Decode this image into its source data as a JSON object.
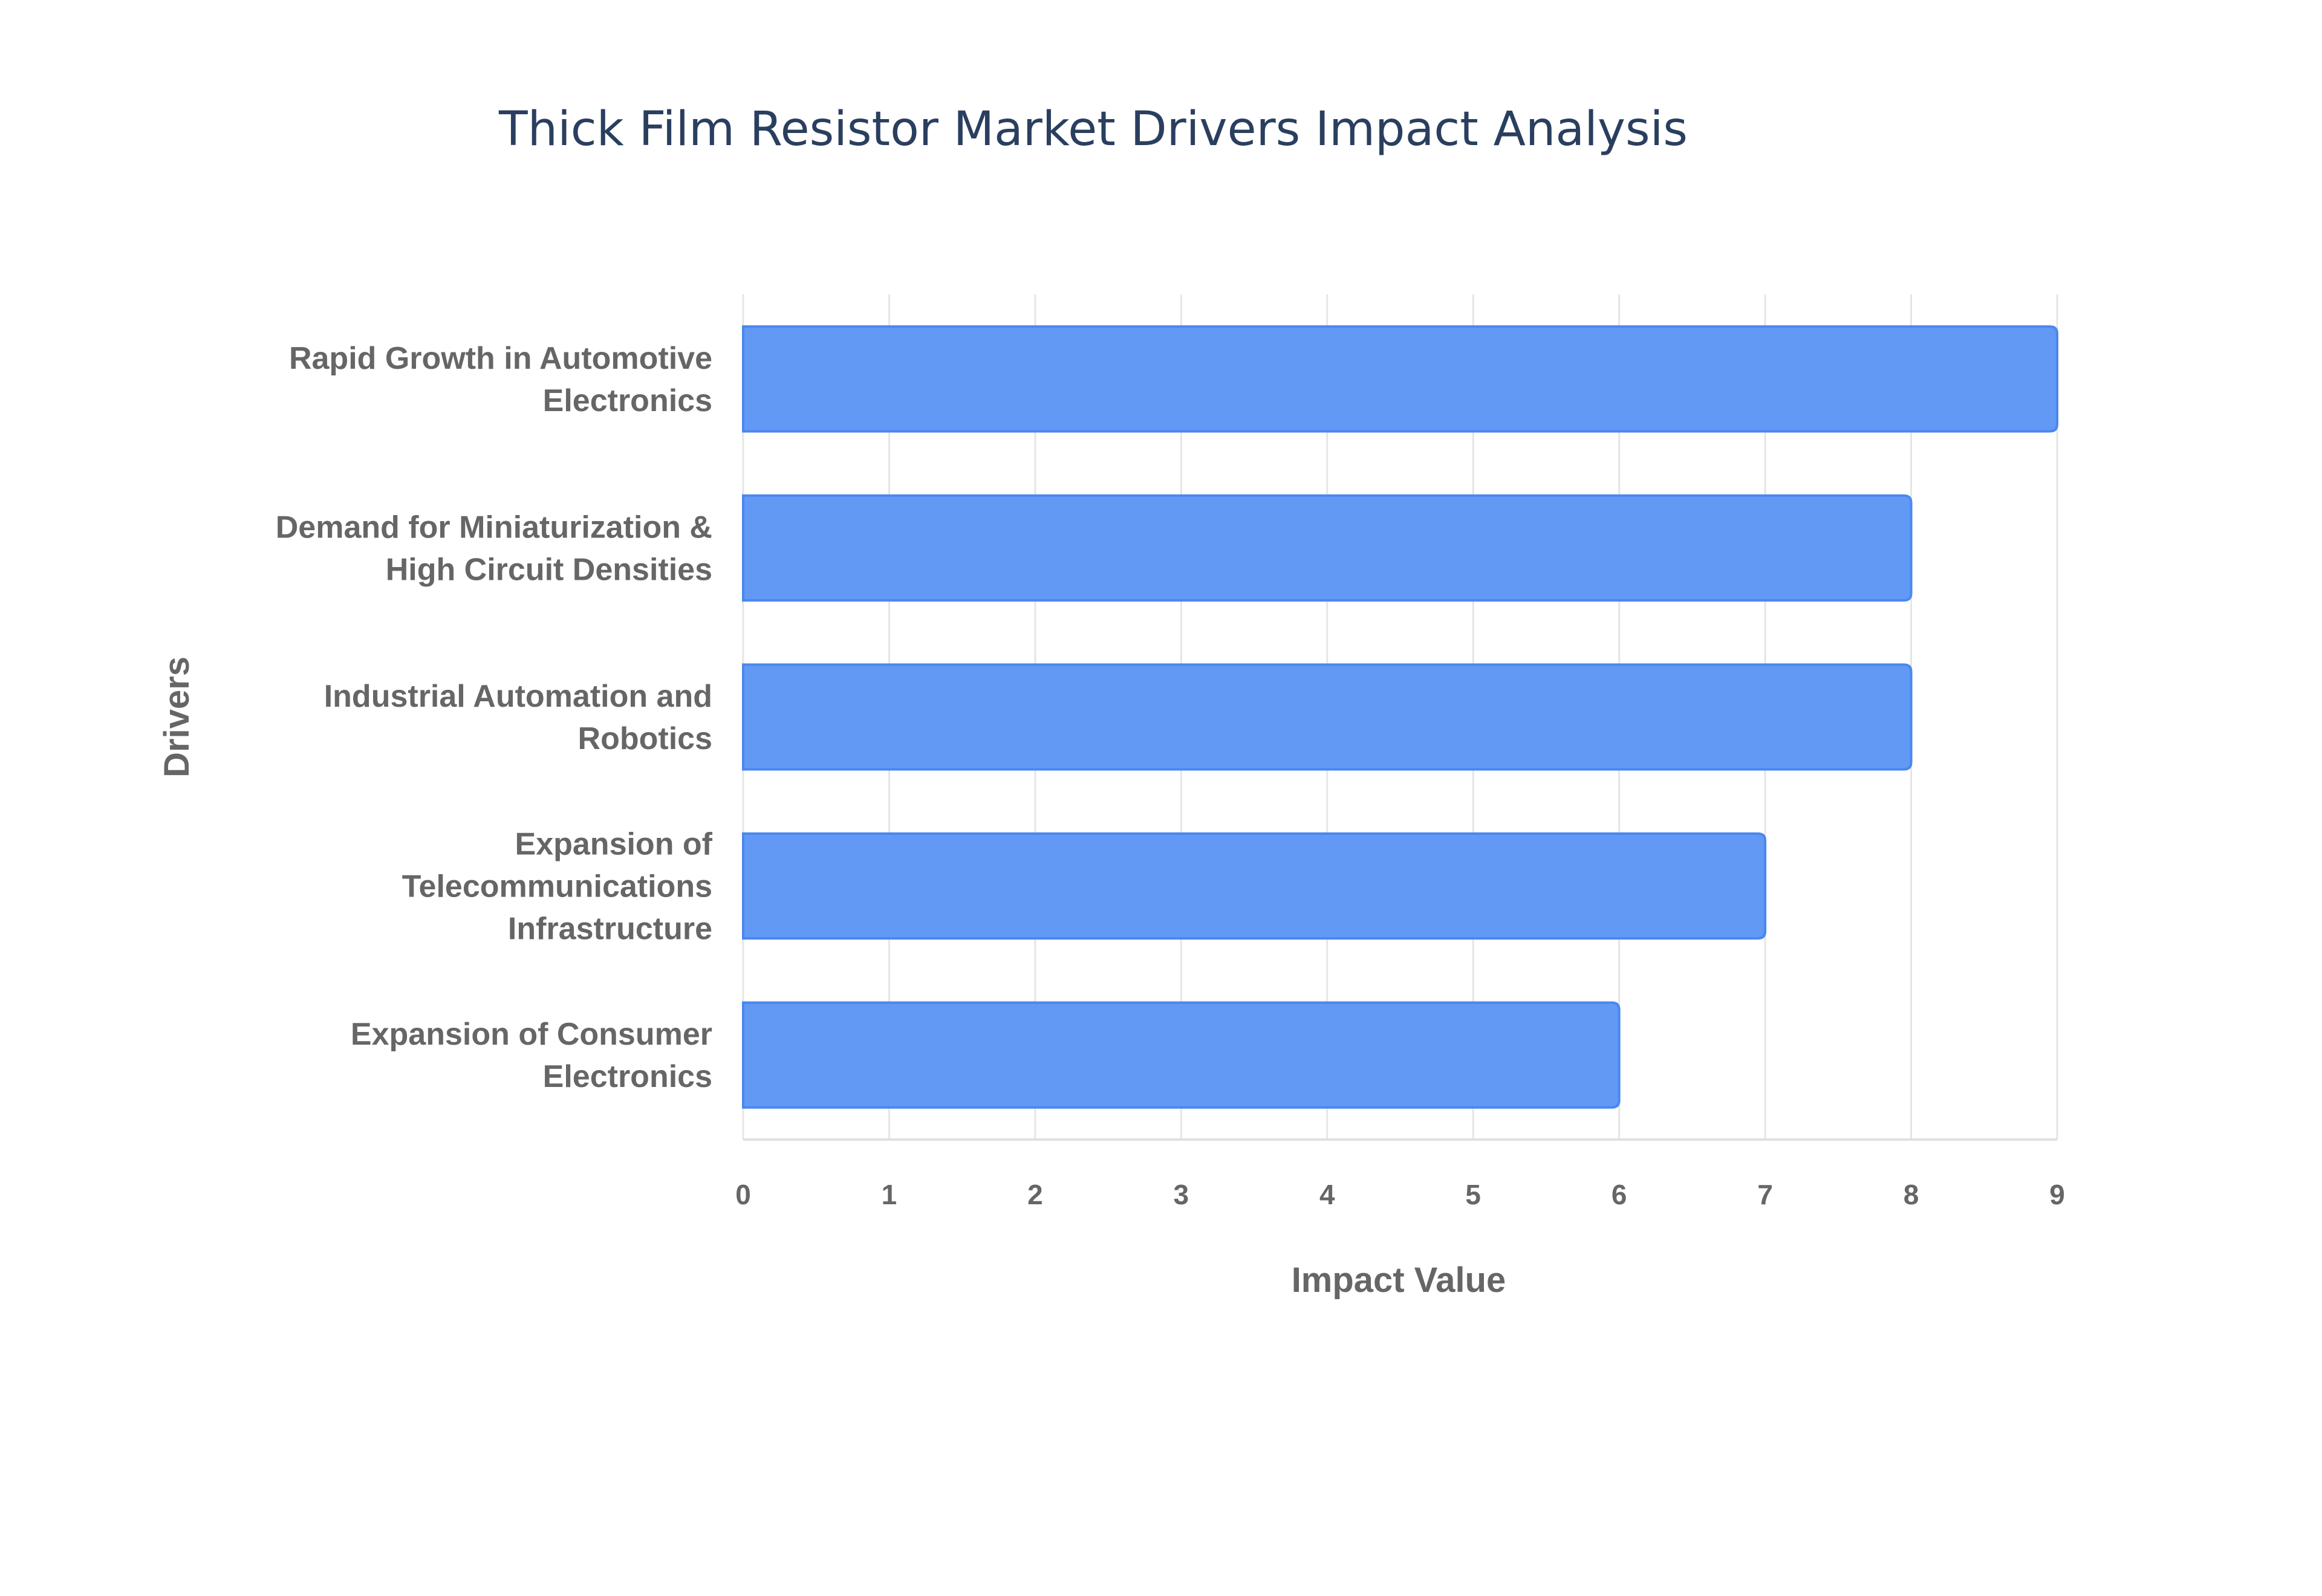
{
  "chart_data": {
    "type": "bar",
    "orientation": "horizontal",
    "title": "Thick Film Resistor Market Drivers Impact Analysis",
    "xlabel": "Impact Value",
    "ylabel": "Drivers",
    "categories": [
      "Rapid Growth in Automotive Electronics",
      "Demand for Miniaturization & High Circuit Densities",
      "Industrial Automation and Robotics",
      "Expansion of Telecommunications Infrastructure",
      "Expansion of Consumer Electronics"
    ],
    "category_lines": [
      [
        "Rapid Growth in Automotive",
        "Electronics"
      ],
      [
        "Demand for Miniaturization &",
        "High Circuit Densities"
      ],
      [
        "Industrial Automation and",
        "Robotics"
      ],
      [
        "Expansion of",
        "Telecommunications",
        "Infrastructure"
      ],
      [
        "Expansion of Consumer",
        "Electronics"
      ]
    ],
    "values": [
      9,
      8,
      8,
      7,
      6
    ],
    "xlim": [
      0,
      9
    ],
    "xticks": [
      "0",
      "1",
      "2",
      "3",
      "4",
      "5",
      "6",
      "7",
      "8",
      "9"
    ],
    "grid": true,
    "legend": "none",
    "colors": {
      "bar_fill": "#6199f4",
      "bar_border": "#4a87ef",
      "grid": "#e5e5e5",
      "title": "#2a3f5f",
      "text": "#666666"
    }
  }
}
